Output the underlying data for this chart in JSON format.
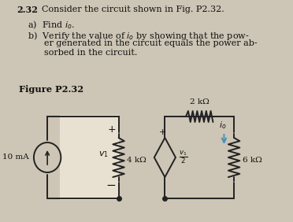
{
  "bg_color": "#cdc5b5",
  "box_color": "#e8e0d0",
  "title_bold": "2.32",
  "title_rest": "  Consider the circuit shown in Fig. P2.32.",
  "part_a": "a)  Find $i_o$.",
  "part_b_line1": "b)  Verify the value of $i_o$ by showing that the pow-",
  "part_b_line2": "      er generated in the circuit equals the power ab-",
  "part_b_line3": "      sorbed in the circuit.",
  "figure_label": "Figure P2.32",
  "label_10mA": "10 mA",
  "label_4k": "4 kΩ",
  "label_v1": "$v_1$",
  "label_dep": "$\\frac{v_1}{2}$",
  "label_2k": "2 kΩ",
  "label_6k": "6 kΩ",
  "label_io": "$i_o$",
  "io_arrow_color": "#4a90b8",
  "line_color": "#222222",
  "text_color": "#111111"
}
